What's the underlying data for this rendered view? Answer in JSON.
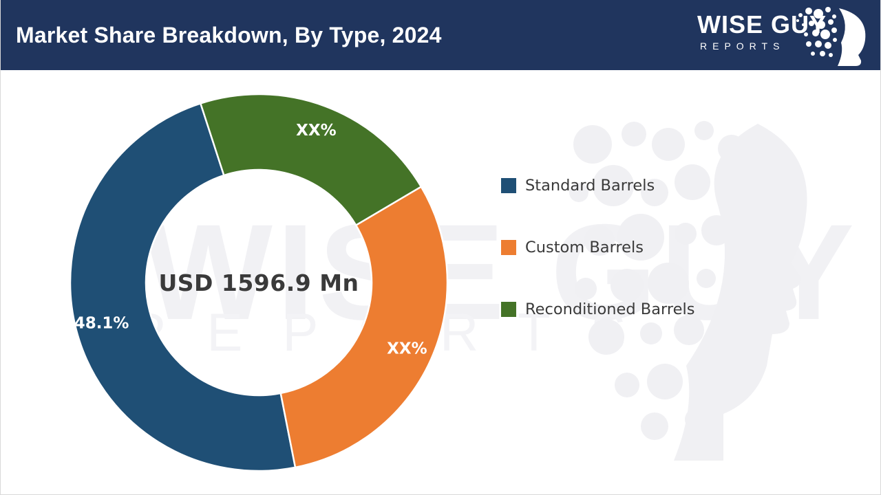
{
  "header": {
    "title": "Market Share Breakdown, By Type, 2024",
    "logo": {
      "name": "WISE GUY",
      "subtitle": "REPORTS"
    }
  },
  "watermark": {
    "name": "WISE GUY",
    "subtitle": "REPORTS"
  },
  "chart_data": {
    "type": "pie",
    "subtype": "donut",
    "title": "Market Share Breakdown, By Type, 2024",
    "center_label": "USD 1596.9 Mn",
    "start_angle_deg": -18,
    "direction": "counterclockwise",
    "legend_position": "right",
    "slices": [
      {
        "label": "Standard Barrels",
        "display_pct": "48.1%",
        "value_pct": 48.1,
        "color": "#1F4F75"
      },
      {
        "label": "Custom Barrels",
        "display_pct": "XX%",
        "value_pct": 30.4,
        "color": "#ED7D31"
      },
      {
        "label": "Reconditioned Barrels",
        "display_pct": "XX%",
        "value_pct": 21.5,
        "color": "#447327"
      }
    ],
    "note": "Custom and Reconditioned slice percentages are masked as XX% in the chart; their value_pct is estimated from arc angles."
  },
  "colors": {
    "header_bg": "#20355E",
    "title_text": "#FFFFFF",
    "center_text": "#3A3A3A",
    "legend_text": "#3A3A3A",
    "watermark": "#F1F1F4",
    "border": "#D9D9D9"
  }
}
